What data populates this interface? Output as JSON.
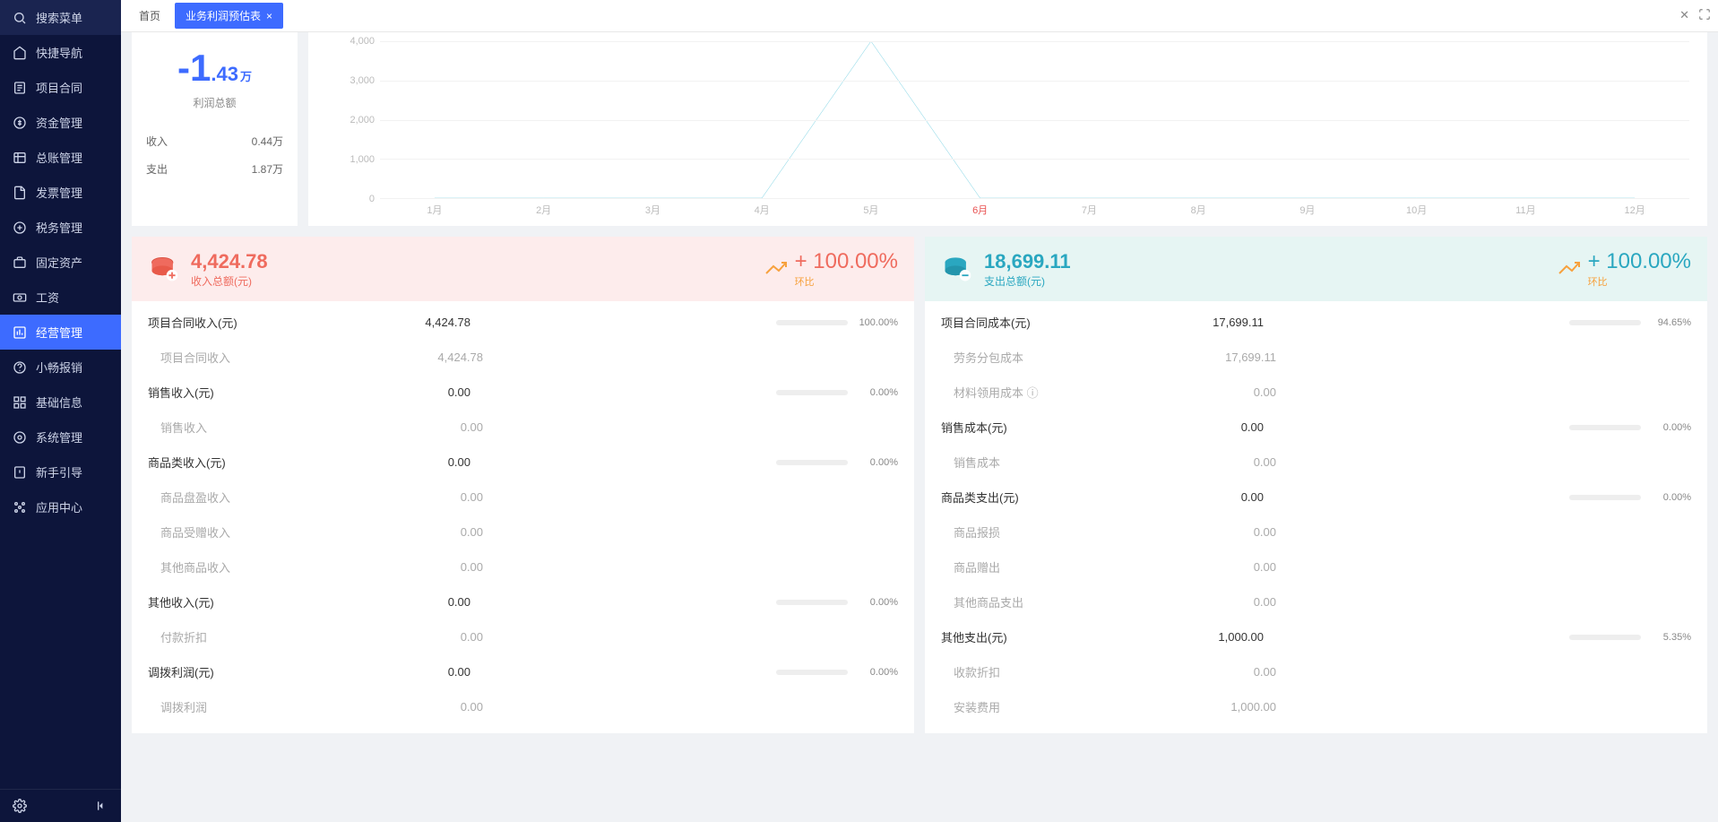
{
  "sidebar": {
    "items": [
      {
        "label": "搜索菜单",
        "icon": "search"
      },
      {
        "label": "快捷导航",
        "icon": "home"
      },
      {
        "label": "项目合同",
        "icon": "doc"
      },
      {
        "label": "资金管理",
        "icon": "money"
      },
      {
        "label": "总账管理",
        "icon": "ledger"
      },
      {
        "label": "发票管理",
        "icon": "invoice"
      },
      {
        "label": "税务管理",
        "icon": "tax"
      },
      {
        "label": "固定资产",
        "icon": "asset"
      },
      {
        "label": "工资",
        "icon": "salary"
      },
      {
        "label": "经营管理",
        "icon": "manage",
        "active": true
      },
      {
        "label": "小畅报销",
        "icon": "reimburse"
      },
      {
        "label": "基础信息",
        "icon": "info"
      },
      {
        "label": "系统管理",
        "icon": "system"
      },
      {
        "label": "新手引导",
        "icon": "guide"
      },
      {
        "label": "应用中心",
        "icon": "apps"
      }
    ]
  },
  "tabs": {
    "home": "首页",
    "active": "业务利润预估表"
  },
  "profit": {
    "big_int": "-1",
    "big_dec": ".43",
    "unit": "万",
    "label": "利润总额",
    "stats": [
      {
        "label": "收入",
        "value": "0.44万"
      },
      {
        "label": "支出",
        "value": "1.87万"
      }
    ]
  },
  "chart": {
    "type": "line",
    "line_color": "#4fc3d9",
    "grid_color": "#f2f2f2",
    "axis_color": "#dddddd",
    "tick_color": "#bbbbbb",
    "highlight_color": "#e85050",
    "y_ticks": [
      "4,000",
      "3,000",
      "2,000",
      "1,000",
      "0"
    ],
    "y_max": 4400,
    "x_labels": [
      "1月",
      "2月",
      "3月",
      "4月",
      "5月",
      "6月",
      "7月",
      "8月",
      "9月",
      "10月",
      "11月",
      "12月"
    ],
    "highlight_index": 5,
    "values": [
      0,
      0,
      0,
      0,
      4400,
      0,
      0,
      0,
      0,
      0,
      0,
      0
    ]
  },
  "income": {
    "amount": "4,424.78",
    "subtitle": "收入总额(元)",
    "ring_label": "环比",
    "pct": "+ 100.00%",
    "header_bg": "#fdecec",
    "accent": "#ef6b5e",
    "bar_color": "#1cc4d4",
    "rows": [
      {
        "label": "项目合同收入(元)",
        "value": "4,424.78",
        "pct": "100.00%",
        "fill": 100
      },
      {
        "label": "项目合同收入",
        "value": "4,424.78",
        "sub": true
      },
      {
        "label": "销售收入(元)",
        "value": "0.00",
        "pct": "0.00%",
        "fill": 0
      },
      {
        "label": "销售收入",
        "value": "0.00",
        "sub": true
      },
      {
        "label": "商品类收入(元)",
        "value": "0.00",
        "pct": "0.00%",
        "fill": 0
      },
      {
        "label": "商品盘盈收入",
        "value": "0.00",
        "sub": true
      },
      {
        "label": "商品受赠收入",
        "value": "0.00",
        "sub": true
      },
      {
        "label": "其他商品收入",
        "value": "0.00",
        "sub": true
      },
      {
        "label": "其他收入(元)",
        "value": "0.00",
        "pct": "0.00%",
        "fill": 0
      },
      {
        "label": "付款折扣",
        "value": "0.00",
        "sub": true
      },
      {
        "label": "调拨利润(元)",
        "value": "0.00",
        "pct": "0.00%",
        "fill": 0
      },
      {
        "label": "调拨利润",
        "value": "0.00",
        "sub": true
      }
    ]
  },
  "expense": {
    "amount": "18,699.11",
    "subtitle": "支出总额(元)",
    "ring_label": "环比",
    "pct": "+ 100.00%",
    "header_bg": "#e6f5f3",
    "accent": "#2aa7c0",
    "bar_color": "#1cc4d4",
    "rows": [
      {
        "label": "项目合同成本(元)",
        "value": "17,699.11",
        "pct": "94.65%",
        "fill": 94.65
      },
      {
        "label": "劳务分包成本",
        "value": "17,699.11",
        "sub": true
      },
      {
        "label": "材料领用成本 ⓘ",
        "value": "0.00",
        "sub": true
      },
      {
        "label": "销售成本(元)",
        "value": "0.00",
        "pct": "0.00%",
        "fill": 0
      },
      {
        "label": "销售成本",
        "value": "0.00",
        "sub": true
      },
      {
        "label": "商品类支出(元)",
        "value": "0.00",
        "pct": "0.00%",
        "fill": 0
      },
      {
        "label": "商品报损",
        "value": "0.00",
        "sub": true
      },
      {
        "label": "商品赠出",
        "value": "0.00",
        "sub": true
      },
      {
        "label": "其他商品支出",
        "value": "0.00",
        "sub": true
      },
      {
        "label": "其他支出(元)",
        "value": "1,000.00",
        "pct": "5.35%",
        "fill": 5.35
      },
      {
        "label": "收款折扣",
        "value": "0.00",
        "sub": true
      },
      {
        "label": "安装费用",
        "value": "1,000.00",
        "sub": true
      }
    ]
  }
}
